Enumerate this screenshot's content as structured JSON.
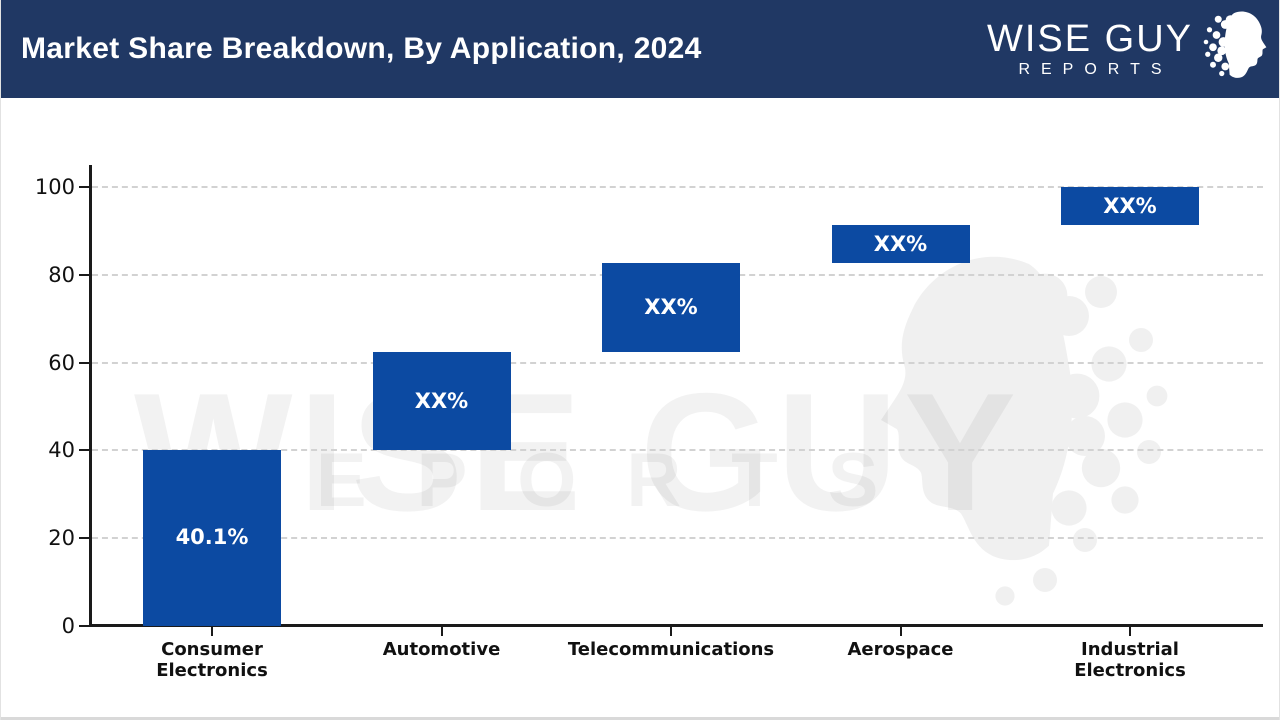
{
  "header": {
    "title": "Market Share Breakdown, By Application, 2024",
    "bg_color": "#203864",
    "logo": {
      "line1": "WISE GUY",
      "line2": "REPORTS"
    }
  },
  "watermark": {
    "line1": "WISE GUY",
    "line2": "REPORTS"
  },
  "chart_data": {
    "type": "bar",
    "subtype": "waterfall-stacked-market-share",
    "title": "Market Share Breakdown, By Application, 2024",
    "categories": [
      "Consumer Electronics",
      "Automotive",
      "Telecommunications",
      "Aerospace",
      "Industrial Electronics"
    ],
    "segments": [
      {
        "category": "Consumer Electronics",
        "start": 0,
        "end": 40.1,
        "label": "40.1%"
      },
      {
        "category": "Automotive",
        "start": 40.1,
        "end": 62.4,
        "label": "XX%"
      },
      {
        "category": "Telecommunications",
        "start": 62.4,
        "end": 82.6,
        "label": "XX%"
      },
      {
        "category": "Aerospace",
        "start": 82.6,
        "end": 91.3,
        "label": "XX%"
      },
      {
        "category": "Industrial Electronics",
        "start": 91.3,
        "end": 100,
        "label": "XX%"
      }
    ],
    "y_ticks": [
      0,
      20,
      40,
      60,
      80,
      100
    ],
    "ylim": [
      0,
      105
    ],
    "xlabel": "",
    "ylabel": "",
    "grid": "horizontal-dashed",
    "legend": "none",
    "bar_color": "#0c4aa2",
    "axis_color": "#1a1a1a",
    "grid_color": "#d2d2d2"
  }
}
